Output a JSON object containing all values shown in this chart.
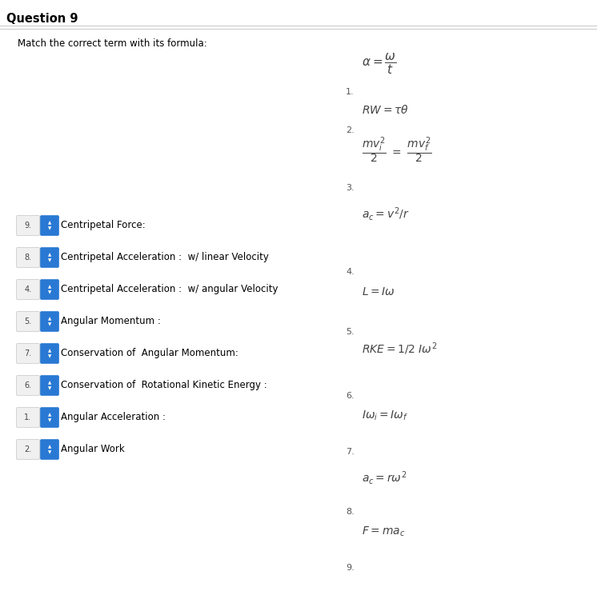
{
  "title": "Question 9",
  "subtitle": "Match the correct term with its formula:",
  "background_color": "#ffffff",
  "terms": [
    {
      "number": "9.",
      "text": "Centripetal Force:"
    },
    {
      "number": "8.",
      "text": "Centripetal Acceleration :  w/ linear Velocity"
    },
    {
      "number": "4.",
      "text": "Centripetal Acceleration :  w/ angular Velocity"
    },
    {
      "number": "5.",
      "text": "Angular Momentum :"
    },
    {
      "number": "7.",
      "text": "Conservation of  Angular Momentum:"
    },
    {
      "number": "6.",
      "text": "Conservation of  Rotational Kinetic Energy :"
    },
    {
      "number": "1.",
      "text": "Angular Acceleration :"
    },
    {
      "number": "2.",
      "text": "Angular Work"
    }
  ],
  "box_color": "#2979d4",
  "number_color": "#555555",
  "title_fontsize": 10.5,
  "subtitle_fontsize": 8.5,
  "term_fontsize": 8.5,
  "formula_fontsize": 10
}
